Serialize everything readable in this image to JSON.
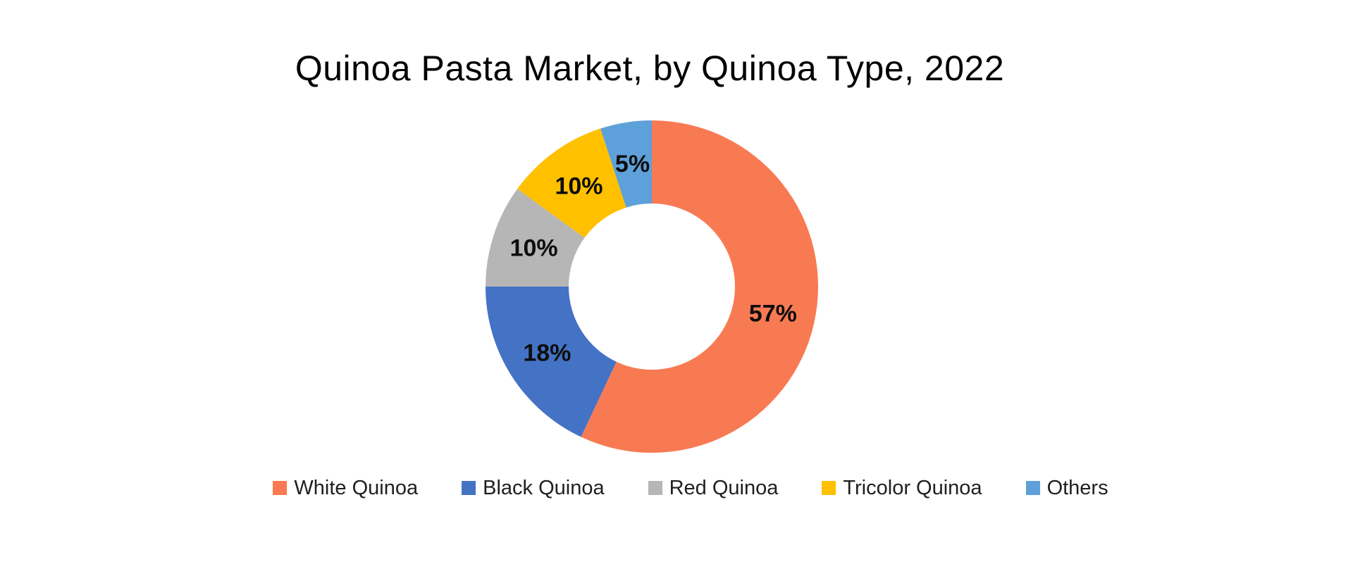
{
  "chart_data": {
    "type": "pie",
    "variant": "donut",
    "title": "Quinoa Pasta Market, by Quinoa Type, 2022",
    "unit": "%",
    "categories": [
      "White Quinoa",
      "Black Quinoa",
      "Red Quinoa",
      "Tricolor Quinoa",
      "Others"
    ],
    "values": [
      57,
      18,
      10,
      10,
      5
    ],
    "segments": [
      {
        "id": "white-quinoa",
        "label": "White Quinoa",
        "value": 57,
        "data_label": "57%",
        "color": "#F87A53"
      },
      {
        "id": "black-quinoa",
        "label": "Black Quinoa",
        "value": 18,
        "data_label": "18%",
        "color": "#4472C4"
      },
      {
        "id": "red-quinoa",
        "label": "Red Quinoa",
        "value": 10,
        "data_label": "10%",
        "color": "#B6B6B6"
      },
      {
        "id": "tricolor-quinoa",
        "label": "Tricolor Quinoa",
        "value": 10,
        "data_label": "10%",
        "color": "#FFC000"
      },
      {
        "id": "others",
        "label": "Others",
        "value": 5,
        "data_label": "5%",
        "color": "#5EA0D9"
      }
    ],
    "start_angle_deg": 0,
    "direction": "clockwise",
    "hole_ratio": 0.5,
    "data_labels": "inside",
    "label_color": "#0d0d0d",
    "legend_position": "bottom",
    "background_color": "#ffffff"
  }
}
